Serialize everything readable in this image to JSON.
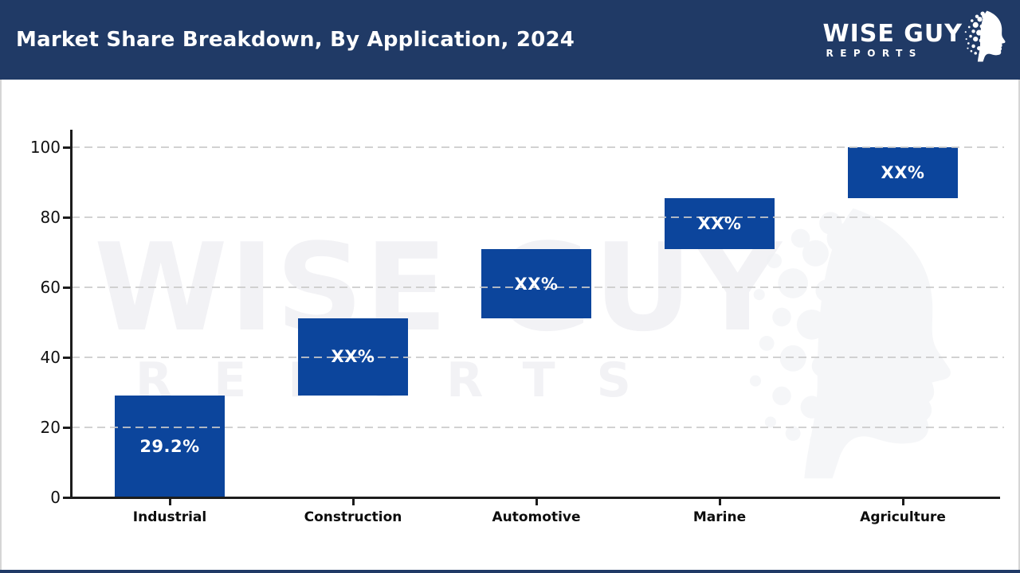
{
  "header": {
    "title": "Market Share Breakdown, By Application, 2024",
    "bg_color": "#203a66",
    "logo": {
      "line1": "WISE GUY",
      "line2": "REPORTS"
    }
  },
  "watermark": {
    "line1": "WISE GUY",
    "line2": "REPORTS"
  },
  "chart_data": {
    "type": "bar",
    "subtype": "waterfall",
    "title": "Market Share Breakdown, By Application, 2024",
    "categories": [
      "Industrial",
      "Construction",
      "Automotive",
      "Marine",
      "Agriculture"
    ],
    "series": [
      {
        "name": "Market Share (%)",
        "segments": [
          {
            "category": "Industrial",
            "start": 0,
            "end": 29.2,
            "label": "29.2%"
          },
          {
            "category": "Construction",
            "start": 29.2,
            "end": 51.2,
            "label": "XX%"
          },
          {
            "category": "Automotive",
            "start": 51.2,
            "end": 70.8,
            "label": "XX%"
          },
          {
            "category": "Marine",
            "start": 70.8,
            "end": 85.4,
            "label": "XX%"
          },
          {
            "category": "Agriculture",
            "start": 85.4,
            "end": 100.0,
            "label": "XX%"
          }
        ]
      }
    ],
    "xlabel": "",
    "ylabel": "",
    "ylim": [
      0,
      100
    ],
    "yticks": [
      0,
      20,
      40,
      60,
      80,
      100
    ],
    "grid": "horizontal-dashed",
    "legend": "none",
    "bar_color": "#0c459c",
    "label_color": "#ffffff"
  }
}
